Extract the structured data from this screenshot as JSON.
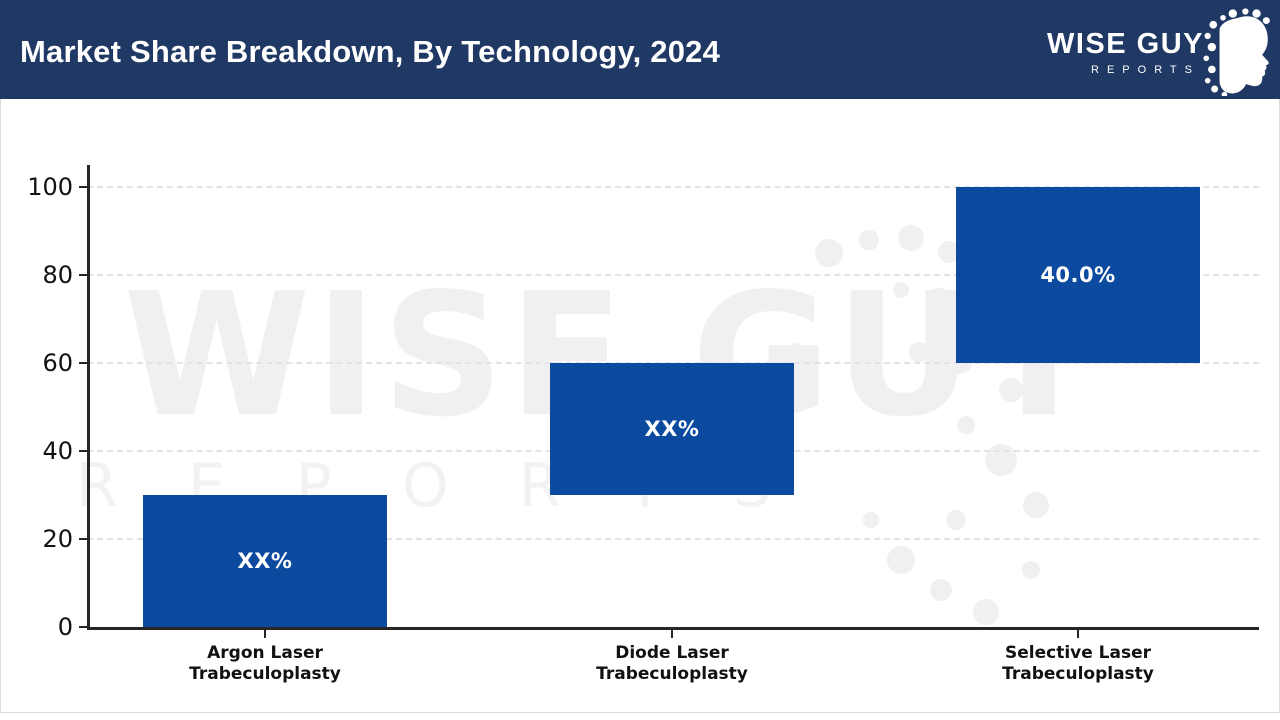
{
  "header": {
    "title": "Market Share Breakdown, By Technology, 2024",
    "bg_color": "#1f3864",
    "logo": {
      "name": "WISE GUY",
      "subtext": "REPORTS"
    }
  },
  "watermark": {
    "name": "WISE GUY",
    "subtext": "REPORTS"
  },
  "chart_data": {
    "type": "bar",
    "subtype": "floating-range-bars",
    "title": "Market Share Breakdown, By Technology, 2024",
    "categories": [
      "Argon Laser Trabeculoplasty",
      "Diode Laser Trabeculoplasty",
      "Selective Laser Trabeculoplasty"
    ],
    "bars": [
      {
        "category": "Argon Laser Trabeculoplasty",
        "start": 0,
        "end": 30,
        "label": "XX%"
      },
      {
        "category": "Diode Laser Trabeculoplasty",
        "start": 30,
        "end": 60,
        "label": "XX%"
      },
      {
        "category": "Selective Laser Trabeculoplasty",
        "start": 60,
        "end": 100,
        "label": "40.0%"
      }
    ],
    "yticks": [
      0,
      20,
      40,
      60,
      80,
      100
    ],
    "ylim": [
      0,
      105
    ],
    "xlabel": "",
    "ylabel": "",
    "grid": "horizontal-dashed",
    "legend": "none",
    "colors": {
      "bar": "#0b4a9e",
      "bar_label": "#ffffff",
      "grid": "#e3e3e3",
      "axis": "#262626",
      "tick_label": "#111111",
      "header_bg": "#1f3864",
      "watermark": "#f0f0f2"
    }
  }
}
